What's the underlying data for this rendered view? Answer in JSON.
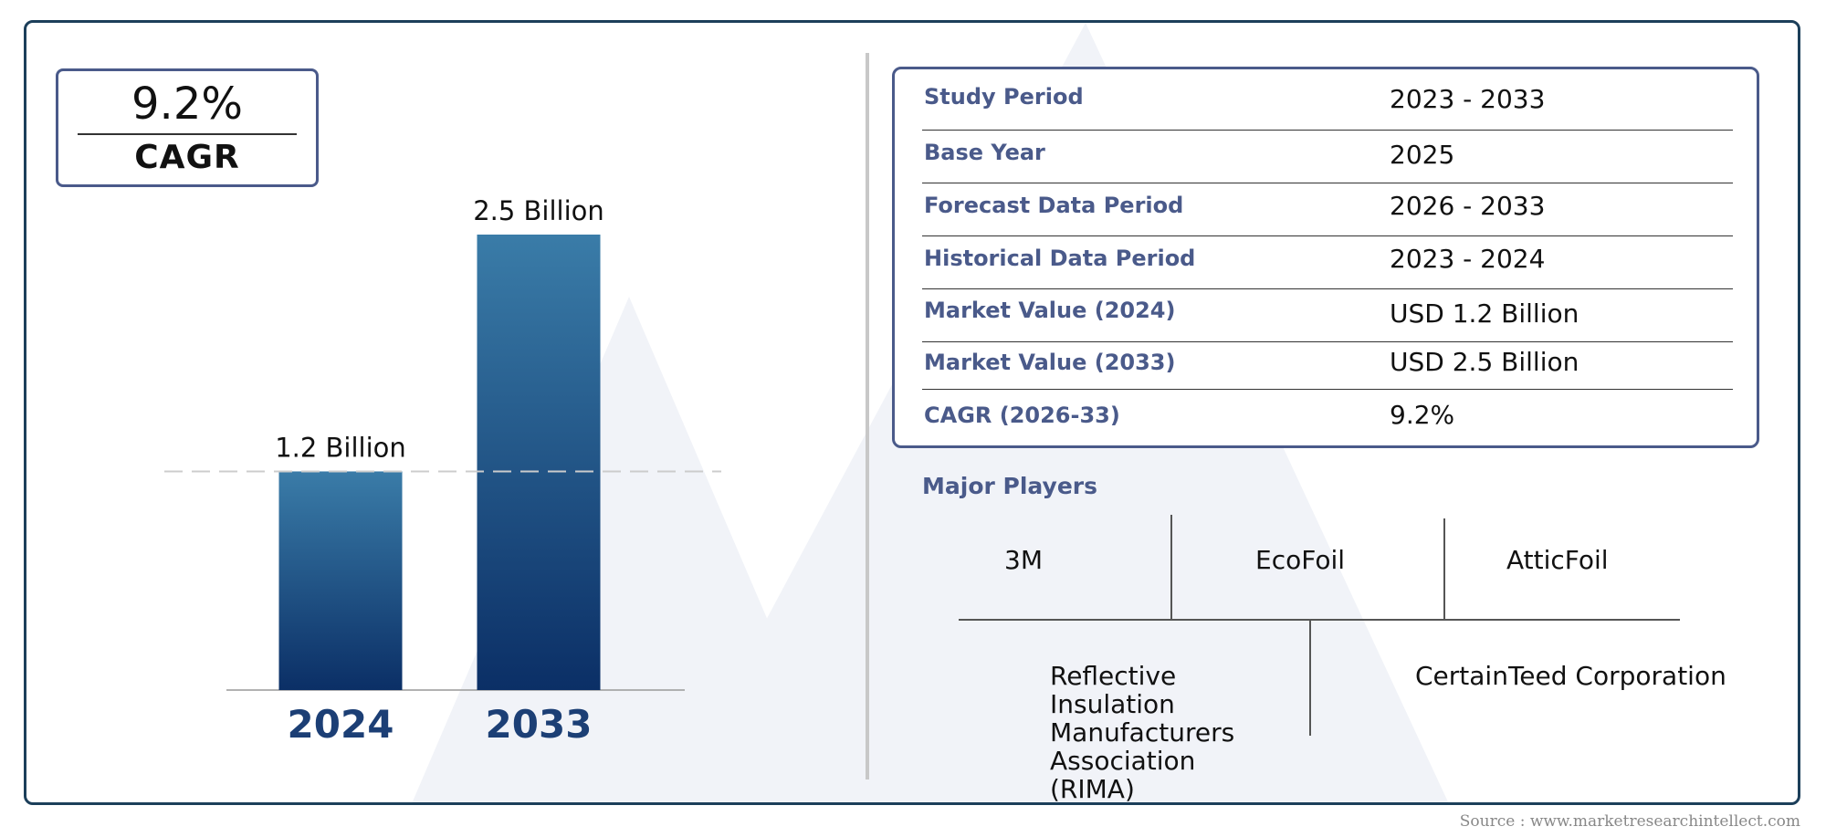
{
  "cagr": {
    "value": "9.2%",
    "label": "CAGR"
  },
  "chart_data": {
    "type": "bar",
    "categories": [
      "2024",
      "2033"
    ],
    "values": [
      1.2,
      2.5
    ],
    "data_labels": [
      "1.2 Billion",
      "2.5 Billion"
    ],
    "unit": "Billion",
    "ylim": [
      0,
      2.5
    ],
    "reference_line": 1.2,
    "grid": false,
    "colors": {
      "bar_top": "#3a7ca8",
      "bar_bottom": "#0b2f66",
      "category_label": "#1c3f75",
      "reference_line": "#cccccc"
    }
  },
  "info_table": {
    "rows": [
      {
        "label": "Study Period",
        "value": "2023 - 2033"
      },
      {
        "label": "Base Year",
        "value": "2025"
      },
      {
        "label": "Forecast Data Period",
        "value": "2026 - 2033"
      },
      {
        "label": "Historical Data Period",
        "value": "2023 - 2024"
      },
      {
        "label": "Market Value (2024)",
        "value": "USD 1.2 Billion"
      },
      {
        "label": "Market Value (2033)",
        "value": "USD 2.5 Billion"
      },
      {
        "label": "CAGR (2026-33)",
        "value": "9.2%"
      }
    ]
  },
  "major_players": {
    "title": "Major Players",
    "players": [
      "3M",
      "EcoFoil",
      "AtticFoil",
      "Reflective Insulation Manufacturers Association (RIMA)",
      "CertainTeed Corporation"
    ]
  },
  "source": "Source : www.marketresearchintellect.com",
  "colors": {
    "border": "#1c3f5a",
    "accent": "#4a5a8a",
    "watermark": "#eef1f7"
  }
}
